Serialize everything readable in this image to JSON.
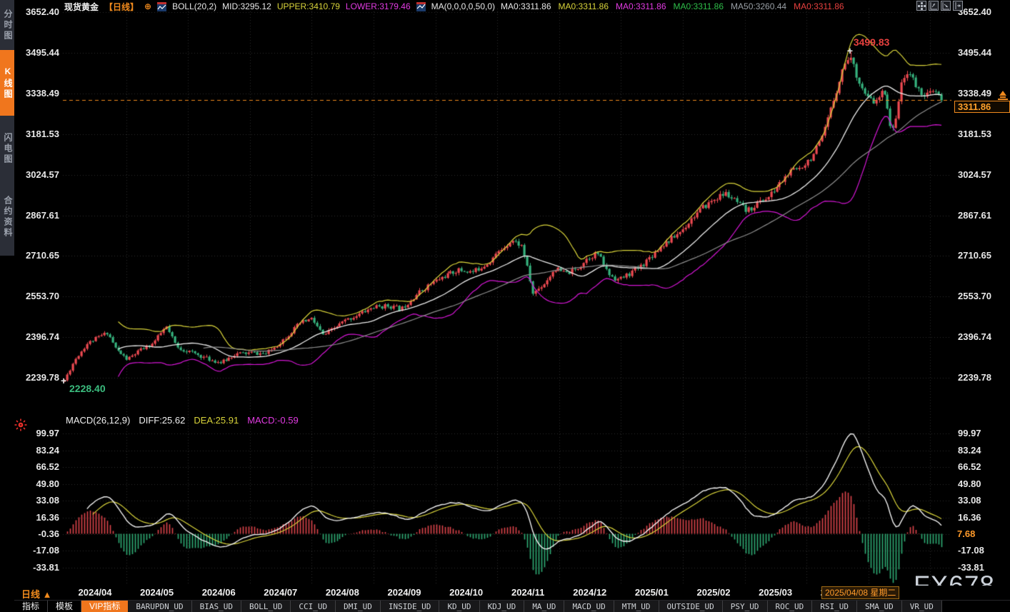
{
  "window": {
    "watermark": "FX678"
  },
  "sidebar": {
    "items": [
      {
        "label": "分时图",
        "active": false
      },
      {
        "label": "K线图",
        "active": true
      },
      {
        "label": "闪电图",
        "active": false
      },
      {
        "label": "合约资料",
        "active": false
      }
    ]
  },
  "header": {
    "symbol": "现货黄金",
    "period_tag": "【日线】",
    "add_button": "⊕",
    "boll": {
      "label": "BOLL(20,2)",
      "mid": "MID:3295.12",
      "upper": "UPPER:3410.79",
      "lower": "LOWER:3179.46"
    },
    "ma_label": "MA(0,0,0,0,50,0)",
    "ma_values": [
      {
        "text": "MA0:3311.86",
        "color": "#e8e8e8"
      },
      {
        "text": "MA0:3311.86",
        "color": "#d9d43a"
      },
      {
        "text": "MA0:3311.86",
        "color": "#e23be2"
      },
      {
        "text": "MA0:3311.86",
        "color": "#2fbf4a"
      },
      {
        "text": "MA50:3260.44",
        "color": "#9aa0a6"
      },
      {
        "text": "MA0:3311.86",
        "color": "#e8413f"
      }
    ],
    "toolbar_icons": [
      "move-tool-icon",
      "axis-zoom-left-icon",
      "axis-zoom-right-icon",
      "scroll-to-latest-icon"
    ]
  },
  "macd_header": {
    "title": "MACD(26,12,9)",
    "diff": "DIFF:25.62",
    "dea": "DEA:25.91",
    "macd": "MACD:-0.59"
  },
  "price_tag": {
    "value": "3311.86"
  },
  "macd_tag": {
    "value": "7.68"
  },
  "date_box": {
    "text": "2025/04/08 星期二"
  },
  "period_selector": {
    "label": "日线",
    "arrow": "▲"
  },
  "markers": {
    "cross": "+"
  },
  "tabs": [
    {
      "label": "指标",
      "active": false,
      "type": "menu"
    },
    {
      "label": "模板",
      "active": false,
      "type": "menu"
    },
    {
      "label": "VIP指标",
      "active": true,
      "type": "menu"
    },
    {
      "label": "BARUPDN_UD",
      "active": false,
      "type": "indicator"
    },
    {
      "label": "BIAS_UD",
      "active": false,
      "type": "indicator"
    },
    {
      "label": "BOLL_UD",
      "active": false,
      "type": "indicator"
    },
    {
      "label": "CCI_UD",
      "active": false,
      "type": "indicator"
    },
    {
      "label": "DMI_UD",
      "active": false,
      "type": "indicator"
    },
    {
      "label": "INSIDE_UD",
      "active": false,
      "type": "indicator"
    },
    {
      "label": "KD_UD",
      "active": false,
      "type": "indicator"
    },
    {
      "label": "KDJ_UD",
      "active": false,
      "type": "indicator"
    },
    {
      "label": "MA_UD",
      "active": false,
      "type": "indicator"
    },
    {
      "label": "MACD_UD",
      "active": false,
      "type": "indicator"
    },
    {
      "label": "MTM_UD",
      "active": false,
      "type": "indicator"
    },
    {
      "label": "OUTSIDE_UD",
      "active": false,
      "type": "indicator"
    },
    {
      "label": "PSY_UD",
      "active": false,
      "type": "indicator"
    },
    {
      "label": "ROC_UD",
      "active": false,
      "type": "indicator"
    },
    {
      "label": "RSI_UD",
      "active": false,
      "type": "indicator"
    },
    {
      "label": "SMA_UD",
      "active": false,
      "type": "indicator"
    },
    {
      "label": "VR_UD",
      "active": false,
      "type": "indicator"
    }
  ],
  "chart_data": {
    "type": "candlestick",
    "title": "现货黄金 日线",
    "price_axis_labels": [
      "3652.40",
      "3495.44",
      "3338.49",
      "3181.53",
      "3024.57",
      "2867.61",
      "2710.65",
      "2553.70",
      "2396.74",
      "2239.78"
    ],
    "macd_axis_labels": [
      "99.97",
      "83.24",
      "66.52",
      "49.80",
      "33.08",
      "16.36",
      "-0.36",
      "-17.08",
      "-33.81"
    ],
    "months": [
      "2024/04",
      "2024/05",
      "2024/06",
      "2024/07",
      "2024/08",
      "2024/09",
      "2024/10",
      "2024/11",
      "2024/12",
      "2025/01",
      "2025/02",
      "2025/03",
      "2025/04"
    ],
    "n_candles": 310,
    "seed": 11,
    "volatility": 11,
    "last_price": 3311.86,
    "high_point": {
      "label": "3499.83",
      "frac": 0.894
    },
    "low_point": {
      "label": "2228.40",
      "frac": 0.0
    },
    "boll": {
      "period": 20,
      "k": 2
    },
    "ma_long": 50,
    "macd": {
      "fast": 12,
      "slow": 26,
      "signal": 9,
      "display_peak": 99.97
    },
    "colors": {
      "up": "#ef4a52",
      "down": "#36b37e",
      "boll_upper": "#d9d43a",
      "boll_mid": "#ececec",
      "boll_lower": "#d616d6",
      "ma50": "#8f8f8f",
      "diff": "#f0f0f0",
      "dea": "#d9d43a",
      "hist_up": "#e0444c",
      "hist_down": "#2fae76",
      "price_line": "#f08a1d",
      "grid": "#2e2e2e"
    },
    "anchors": [
      [
        0.0,
        2230
      ],
      [
        0.012,
        2310
      ],
      [
        0.026,
        2372
      ],
      [
        0.039,
        2398
      ],
      [
        0.049,
        2415
      ],
      [
        0.059,
        2350
      ],
      [
        0.072,
        2310
      ],
      [
        0.086,
        2345
      ],
      [
        0.101,
        2372
      ],
      [
        0.116,
        2438
      ],
      [
        0.129,
        2355
      ],
      [
        0.145,
        2338
      ],
      [
        0.164,
        2312
      ],
      [
        0.179,
        2298
      ],
      [
        0.195,
        2332
      ],
      [
        0.213,
        2336
      ],
      [
        0.23,
        2332
      ],
      [
        0.243,
        2368
      ],
      [
        0.254,
        2402
      ],
      [
        0.269,
        2452
      ],
      [
        0.282,
        2468
      ],
      [
        0.295,
        2402
      ],
      [
        0.306,
        2428
      ],
      [
        0.319,
        2458
      ],
      [
        0.334,
        2482
      ],
      [
        0.352,
        2512
      ],
      [
        0.37,
        2518
      ],
      [
        0.384,
        2505
      ],
      [
        0.401,
        2562
      ],
      [
        0.417,
        2602
      ],
      [
        0.433,
        2632
      ],
      [
        0.449,
        2656
      ],
      [
        0.466,
        2648
      ],
      [
        0.482,
        2682
      ],
      [
        0.497,
        2732
      ],
      [
        0.51,
        2772
      ],
      [
        0.522,
        2748
      ],
      [
        0.534,
        2565
      ],
      [
        0.547,
        2605
      ],
      [
        0.559,
        2662
      ],
      [
        0.572,
        2642
      ],
      [
        0.584,
        2658
      ],
      [
        0.596,
        2702
      ],
      [
        0.608,
        2722
      ],
      [
        0.62,
        2642
      ],
      [
        0.632,
        2618
      ],
      [
        0.644,
        2642
      ],
      [
        0.656,
        2668
      ],
      [
        0.669,
        2712
      ],
      [
        0.681,
        2752
      ],
      [
        0.693,
        2778
      ],
      [
        0.705,
        2812
      ],
      [
        0.717,
        2862
      ],
      [
        0.73,
        2902
      ],
      [
        0.742,
        2932
      ],
      [
        0.754,
        2952
      ],
      [
        0.766,
        2918
      ],
      [
        0.778,
        2882
      ],
      [
        0.791,
        2918
      ],
      [
        0.803,
        2938
      ],
      [
        0.815,
        2988
      ],
      [
        0.827,
        3032
      ],
      [
        0.839,
        3052
      ],
      [
        0.852,
        3092
      ],
      [
        0.864,
        3162
      ],
      [
        0.876,
        3302
      ],
      [
        0.888,
        3442
      ],
      [
        0.895,
        3488
      ],
      [
        0.905,
        3392
      ],
      [
        0.914,
        3322
      ],
      [
        0.925,
        3302
      ],
      [
        0.935,
        3352
      ],
      [
        0.944,
        3175
      ],
      [
        0.954,
        3362
      ],
      [
        0.962,
        3432
      ],
      [
        0.973,
        3352
      ],
      [
        0.983,
        3332
      ],
      [
        0.993,
        3345
      ],
      [
        1.0,
        3312
      ]
    ]
  }
}
